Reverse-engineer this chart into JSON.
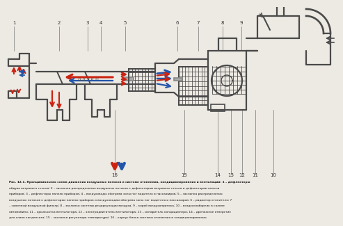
{
  "bg_color": "#ede9e3",
  "diagram_color": "#4a4a4a",
  "arrow_red": "#cc2211",
  "arrow_blue": "#2255aa",
  "center_text": "Н.Д.Т.Р.®",
  "figure_caption_bold": "Рис. 12.1. Принципиальная схема движения воздушных потоков в системе отопления, кондиционирования и вентиляции:",
  "figure_caption_normal": " 1 – дефлекторы обдува ветрового стекла; 2 – заслонки распределения воздушных потоков к дефлекторам ветрового стекла и дефлекторам панели приборов; 3 – дефлекторы панели приборов; 4 – воздуховоды обогрева зоны ног водителя и пассажиров; 5 – заслонка распределения воздушных потоков к дефлекторам панели приборов и воздуховодам обогрева зоны ног водителя и пассажиров; 6 – радиатор отопителя; 7 – салонный воздушный фильтр; 8 – заслонка системы рециркуляции воздуха; 9 – короб воздухопритока; 10 – воздухозаборник в салоне автомобиля; 11 – крыльчатка вентилятора; 12 – электродвигатель вентилятора; 13 – испаритель кондиционера; 14 – дренажное отверстие для слива конденсата; 15 – заслонка регулятора температуры; 16 – корпус блока системы отопления и кондиционирования"
}
